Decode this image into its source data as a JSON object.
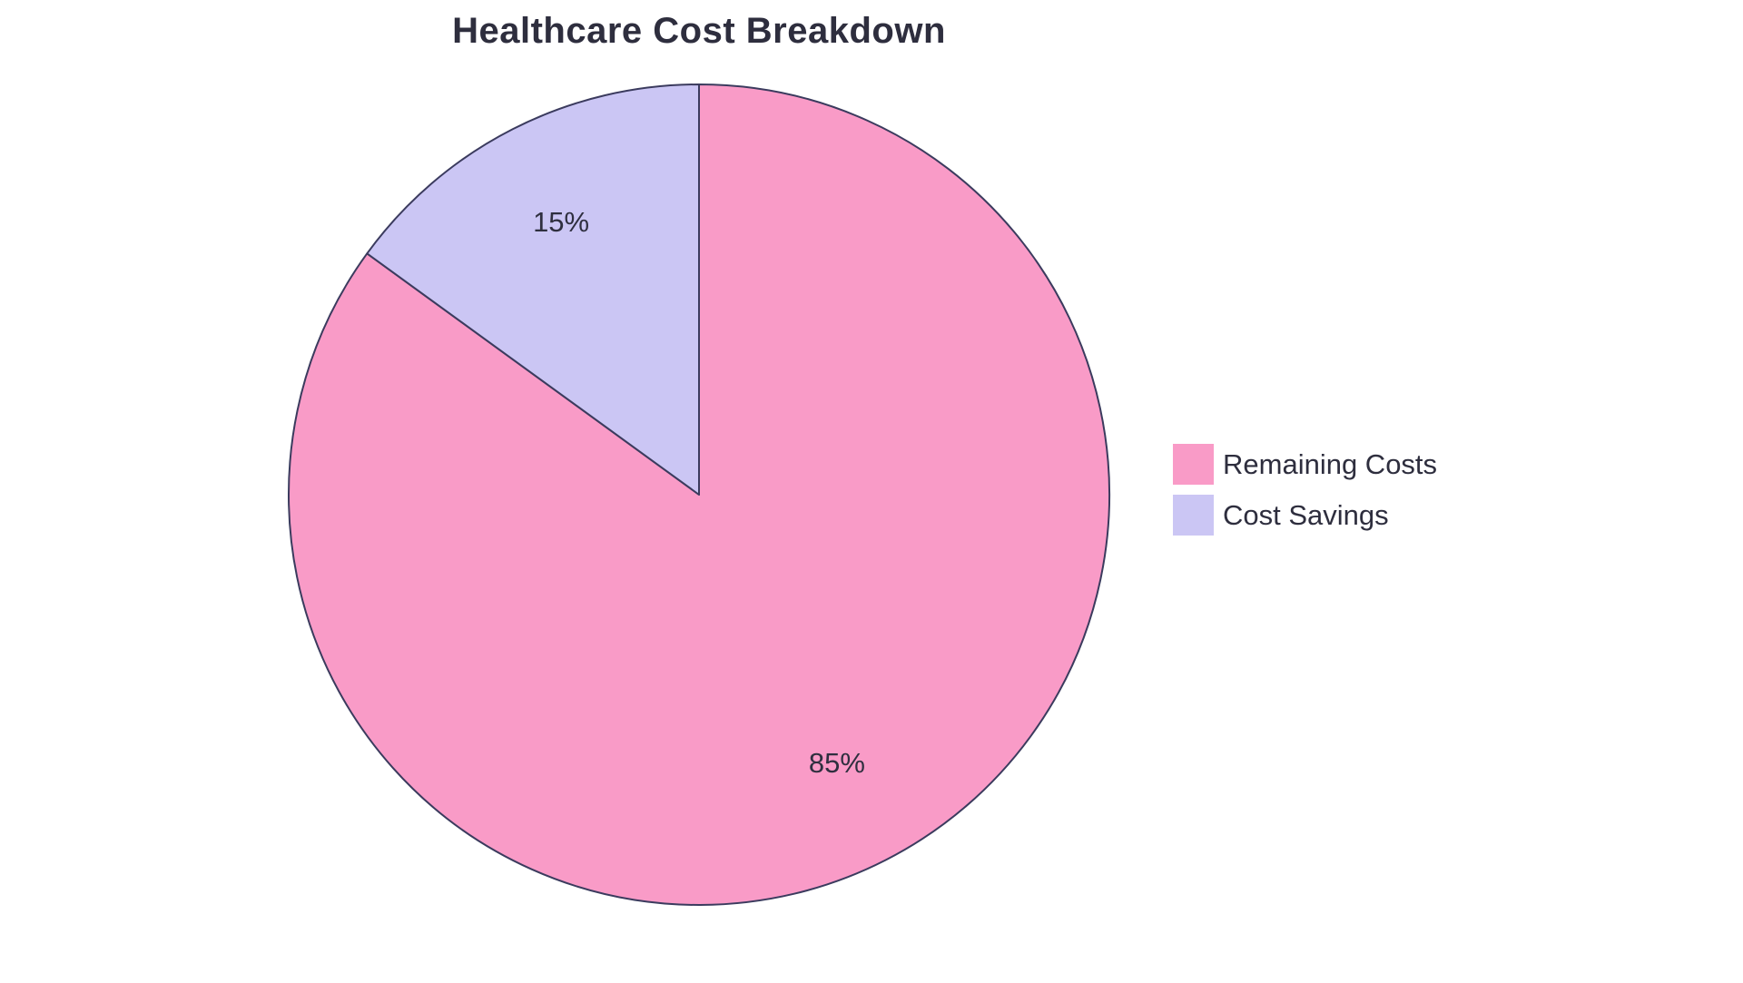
{
  "page": {
    "background_color": "#ffffff"
  },
  "chart_data": {
    "type": "pie",
    "title": "Healthcare Cost Breakdown",
    "series": [
      {
        "label": "Remaining Costs",
        "value": 85,
        "pct_label": "85%",
        "color": "#f99bc7"
      },
      {
        "label": "Cost Savings",
        "value": 15,
        "pct_label": "15%",
        "color": "#cbc6f4"
      }
    ],
    "start_angle_deg": 90,
    "direction": "clockwise",
    "stroke_color": "#3b3b5e",
    "stroke_width": 2,
    "label_color": "#2f2f3f",
    "legend_position": "right",
    "legend_entries": [
      "Remaining Costs",
      "Cost Savings"
    ]
  }
}
